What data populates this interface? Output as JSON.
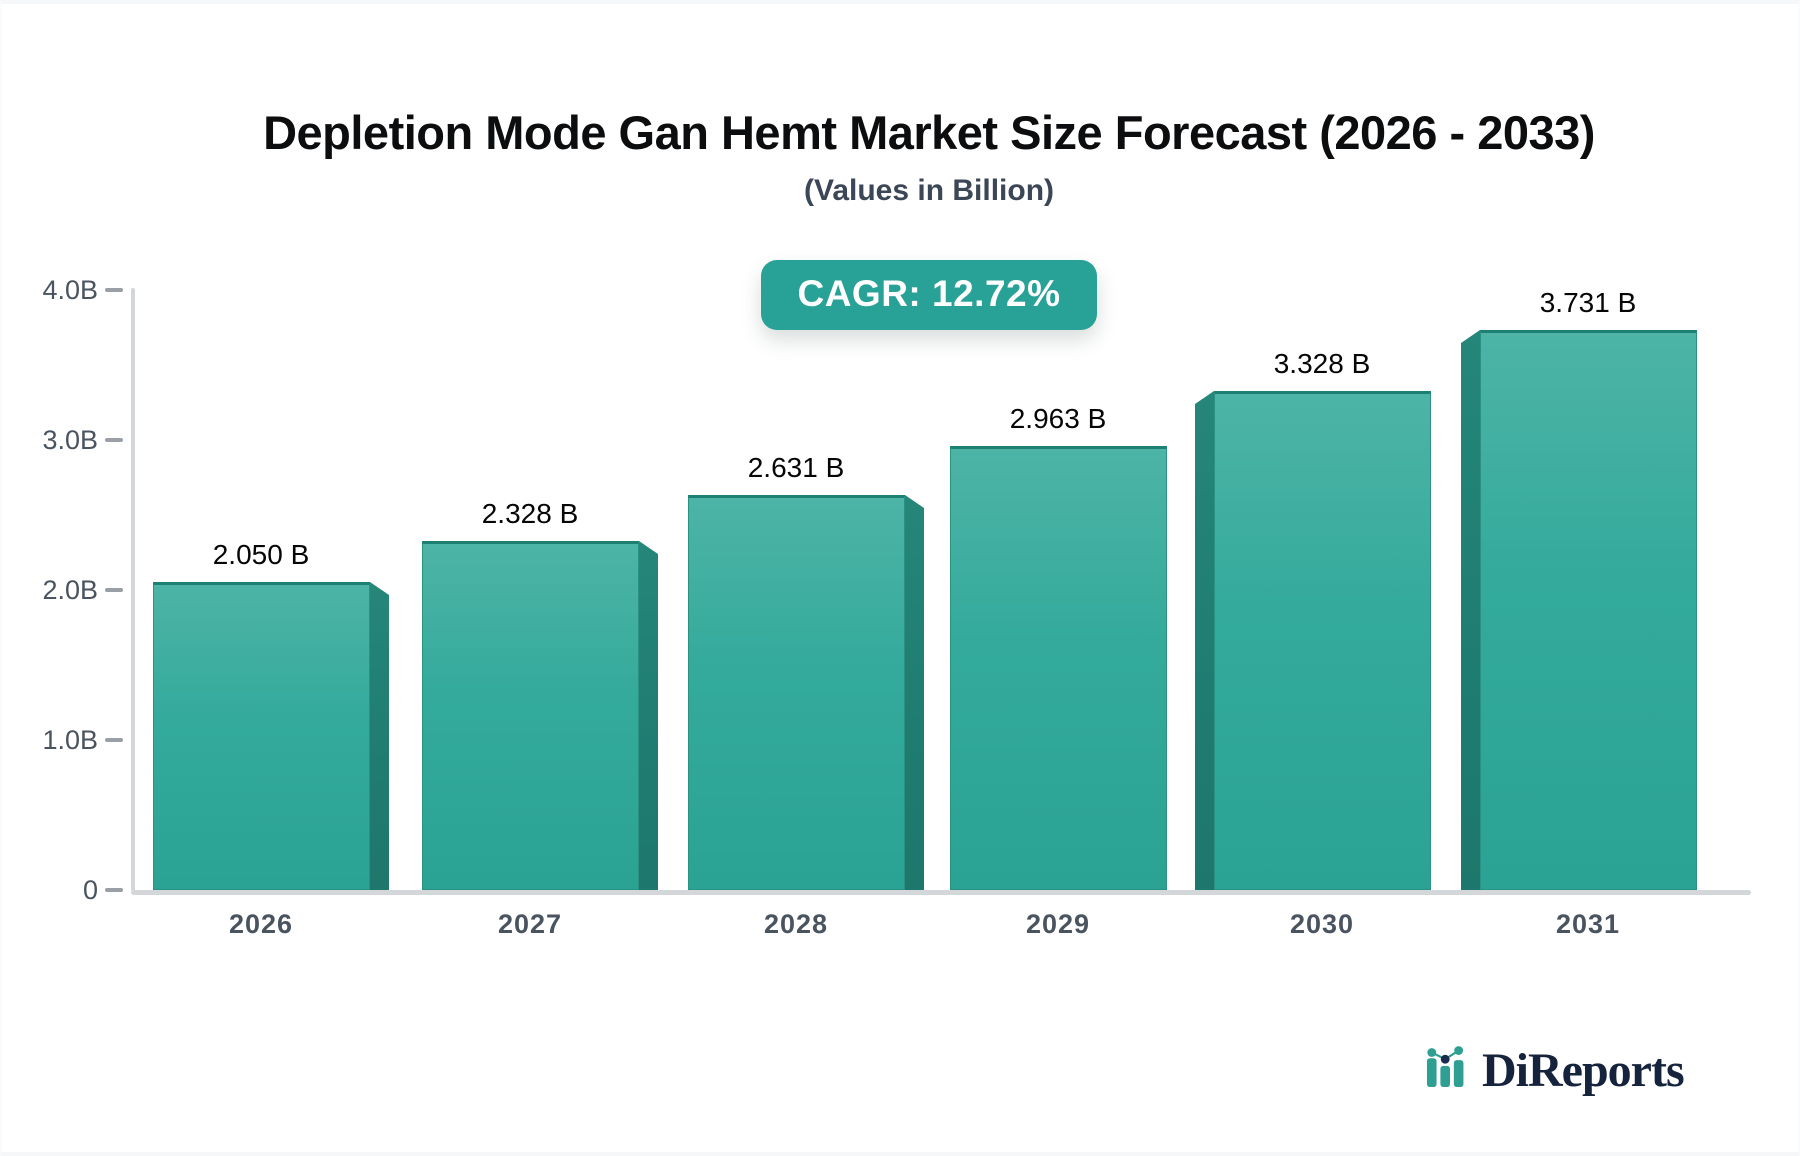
{
  "chart": {
    "title": "Depletion Mode Gan Hemt Market Size Forecast (2026 - 2033)",
    "subtitle": "(Values in Billion)",
    "cagr_label": "CAGR: 12.72%"
  },
  "branding": {
    "logo_text": "DiReports",
    "logo_icon": "bar-chart-trend-icon"
  },
  "colors": {
    "accent_teal": "#28a296",
    "bar_gradient_top": "#4db4a6",
    "bar_gradient_bottom": "#2aa294",
    "bar_side_dark": "#1f7c71",
    "bar_top_edge": "#1c8073",
    "axis_line": "#d4d7da",
    "tick_mark": "#9aa0a5",
    "axis_label": "#4a5460",
    "value_label": "#060606",
    "logo_navy": "#16233c",
    "logo_teal": "#2f9f93"
  },
  "chart_data": {
    "type": "bar",
    "title": "Depletion Mode Gan Hemt Market Size Forecast (2026 - 2033)",
    "subtitle": "(Values in Billion)",
    "annotation": "CAGR: 12.72%",
    "unit": "Billion",
    "categories": [
      "2026",
      "2027",
      "2028",
      "2029",
      "2030",
      "2031"
    ],
    "values": [
      2.05,
      2.328,
      2.631,
      2.963,
      3.328,
      3.731
    ],
    "value_labels": [
      "2.050 B",
      "2.328 B",
      "2.631 B",
      "2.963 B",
      "3.328 B",
      "3.731 B"
    ],
    "xlabel": "",
    "ylabel": "",
    "ylim": [
      0,
      4.0
    ],
    "y_ticks": [
      {
        "label": "0",
        "value": 0
      },
      {
        "label": "1.0B",
        "value": 1.0
      },
      {
        "label": "2.0B",
        "value": 2.0
      },
      {
        "label": "3.0B",
        "value": 3.0
      },
      {
        "label": "4.0B",
        "value": 4.0
      }
    ],
    "grid": false,
    "legend": false,
    "style": "3d-extruded-teal-bars"
  }
}
